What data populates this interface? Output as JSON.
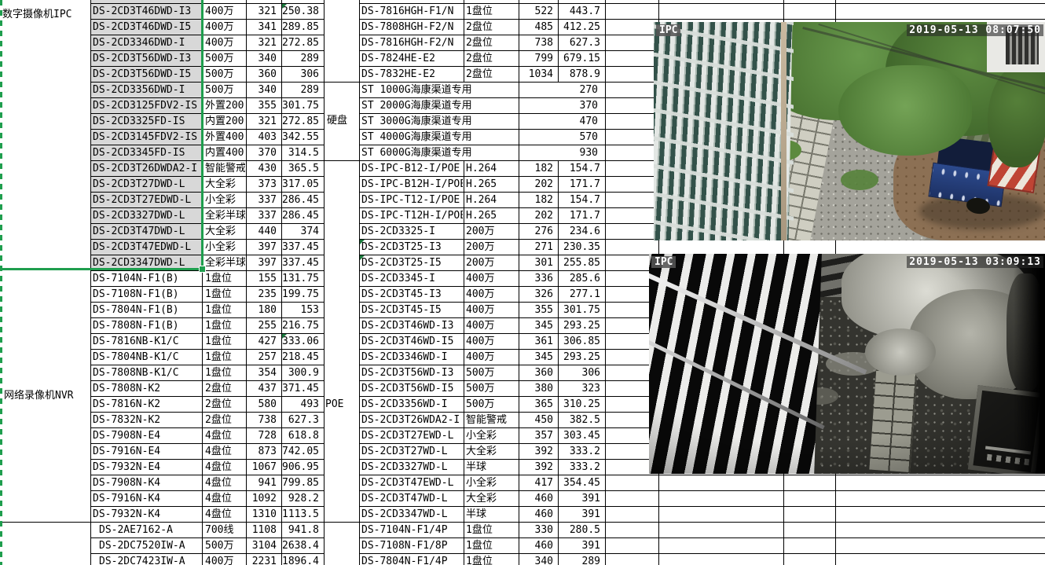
{
  "app": {
    "kind": "spreadsheet price list with embedded IP-camera snapshots"
  },
  "selection": {
    "range_rows": "1-17",
    "range_columns": "A:B",
    "border_color": "#1f9e4e",
    "fill_color": "#d8d8d8"
  },
  "grid": {
    "line_color": "#000000",
    "error_triangle_color": "#1b7a3d"
  },
  "categories": {
    "left_top": "数字摄像机IPC",
    "left_bottom": "网络录像机NVR",
    "mid_top": "硬盘",
    "mid_bottom": "POE"
  },
  "left_table": {
    "rows": [
      [
        "DS-2CD3T46DWD-I3",
        "400万",
        "321",
        "250.38"
      ],
      [
        "DS-2CD3T46DWD-I5",
        "400万",
        "341",
        "289.85"
      ],
      [
        "DS-2CD3346DWD-I",
        "400万",
        "321",
        "272.85"
      ],
      [
        "DS-2CD3T56DWD-I3",
        "500万",
        "340",
        "289"
      ],
      [
        "DS-2CD3T56DWD-I5",
        "500万",
        "360",
        "306"
      ],
      [
        "DS-2CD3356DWD-I",
        "500万",
        "340",
        "289"
      ],
      [
        "DS-2CD3125FDV2-IS",
        "外置200",
        "355",
        "301.75"
      ],
      [
        "DS-2CD3325FD-IS",
        "内置200",
        "321",
        "272.85"
      ],
      [
        "DS-2CD3145FDV2-IS",
        "外置400",
        "403",
        "342.55"
      ],
      [
        "DS-2CD3345FD-IS",
        "内置400",
        "370",
        "314.5"
      ],
      [
        "DS-2CD3T26DWDA2-I",
        "智能警戒",
        "430",
        "365.5"
      ],
      [
        "DS-2CD3T27DWD-L",
        "大全彩",
        "373",
        "317.05"
      ],
      [
        "DS-2CD3T27EDWD-L",
        "小全彩",
        "337",
        "286.45"
      ],
      [
        "DS-2CD3327DWD-L",
        "全彩半球",
        "337",
        "286.45"
      ],
      [
        "DS-2CD3T47DWD-L",
        "大全彩",
        "440",
        "374"
      ],
      [
        "DS-2CD3T47EDWD-L",
        "小全彩",
        "397",
        "337.45"
      ],
      [
        "DS-2CD3347DWD-L",
        "全彩半球",
        "397",
        "337.45"
      ],
      [
        "DS-7104N-F1(B)",
        "1盘位",
        "155",
        "131.75"
      ],
      [
        "DS-7108N-F1(B)",
        "1盘位",
        "235",
        "199.75"
      ],
      [
        "DS-7804N-F1(B)",
        "1盘位",
        "180",
        "153"
      ],
      [
        "DS-7808N-F1(B)",
        "1盘位",
        "255",
        "216.75"
      ],
      [
        "DS-7816NB-K1/C",
        "1盘位",
        "427",
        "333.06"
      ],
      [
        "DS-7804NB-K1/C",
        "1盘位",
        "257",
        "218.45"
      ],
      [
        "DS-7808NB-K1/C",
        "1盘位",
        "354",
        "300.9"
      ],
      [
        "DS-7808N-K2",
        "2盘位",
        "437",
        "371.45"
      ],
      [
        "DS-7816N-K2",
        "2盘位",
        "580",
        "493"
      ],
      [
        "DS-7832N-K2",
        "2盘位",
        "738",
        "627.3"
      ],
      [
        "DS-7908N-E4",
        "4盘位",
        "728",
        "618.8"
      ],
      [
        "DS-7916N-E4",
        "4盘位",
        "873",
        "742.05"
      ],
      [
        "DS-7932N-E4",
        "4盘位",
        "1067",
        "906.95"
      ],
      [
        "DS-7908N-K4",
        "4盘位",
        "941",
        "799.85"
      ],
      [
        "DS-7916N-K4",
        "4盘位",
        "1092",
        "928.2"
      ],
      [
        "DS-7932N-K4",
        "4盘位",
        "1310",
        "1113.5"
      ],
      [
        "DS-2AE7162-A",
        "700线",
        "1108",
        "941.8"
      ],
      [
        "DS-2DC7520IW-A",
        "500万",
        "3104",
        "2638.4"
      ],
      [
        "DS-2DC7423IW-A",
        "400万",
        "2231",
        "1896.4"
      ]
    ],
    "selected_rows_gray": [
      1,
      2,
      3,
      4,
      5,
      6,
      7,
      8,
      9,
      10,
      11,
      12,
      13,
      14,
      15,
      16,
      17
    ],
    "indented_rows": [
      34,
      35,
      36
    ],
    "error_marks": [
      {
        "row": 1,
        "col": "price_b"
      },
      {
        "row": 22,
        "col": "price_b"
      }
    ]
  },
  "right_table": {
    "rows": [
      [
        "DS-7816HGH-F1/N",
        "1盘位",
        "522",
        "443.7"
      ],
      [
        "DS-7808HGH-F2/N",
        "2盘位",
        "485",
        "412.25"
      ],
      [
        "DS-7816HGH-F2/N",
        "2盘位",
        "738",
        "627.3"
      ],
      [
        "DS-7824HE-E2",
        "2盘位",
        "799",
        "679.15"
      ],
      [
        "DS-7832HE-E2",
        "2盘位",
        "1034",
        "878.9"
      ],
      [
        "ST 1000G海康渠道专用",
        "",
        "",
        "270"
      ],
      [
        "ST 2000G海康渠道专用",
        "",
        "",
        "370"
      ],
      [
        "ST 3000G海康渠道专用",
        "",
        "",
        "470"
      ],
      [
        "ST 4000G海康渠道专用",
        "",
        "",
        "570"
      ],
      [
        "ST 6000G海康渠道专用",
        "",
        "",
        "930"
      ],
      [
        "DS-IPC-B12-I/POE",
        "H.264",
        "182",
        "154.7"
      ],
      [
        "DS-IPC-B12H-I/POE",
        "H.265",
        "202",
        "171.7"
      ],
      [
        "DS-IPC-T12-I/POE",
        "H.264",
        "182",
        "154.7"
      ],
      [
        "DS-IPC-T12H-I/POE",
        "H.265",
        "202",
        "171.7"
      ],
      [
        "DS-2CD3325-I",
        "200万",
        "276",
        "234.6"
      ],
      [
        "DS-2CD3T25-I3",
        "200万",
        "271",
        "230.35"
      ],
      [
        "DS-2CD3T25-I5",
        "200万",
        "301",
        "255.85"
      ],
      [
        "DS-2CD3345-I",
        "400万",
        "336",
        "285.6"
      ],
      [
        "DS-2CD3T45-I3",
        "400万",
        "326",
        "277.1"
      ],
      [
        "DS-2CD3T45-I5",
        "400万",
        "355",
        "301.75"
      ],
      [
        "DS-2CD3T46WD-I3",
        "400万",
        "345",
        "293.25"
      ],
      [
        "DS-2CD3T46WD-I5",
        "400万",
        "361",
        "306.85"
      ],
      [
        "DS-2CD3346WD-I",
        "400万",
        "345",
        "293.25"
      ],
      [
        "DS-2CD3T56WD-I3",
        "500万",
        "360",
        "306"
      ],
      [
        "DS-2CD3T56WD-I5",
        "500万",
        "380",
        "323"
      ],
      [
        "DS-2CD3356WD-I",
        "500万",
        "365",
        "310.25"
      ],
      [
        "DS-2CD3T26WDA2-I",
        "智能警戒",
        "450",
        "382.5"
      ],
      [
        "DS-2CD3T27EWD-L",
        "小全彩",
        "357",
        "303.45"
      ],
      [
        "DS-2CD3T27WD-L",
        "大全彩",
        "392",
        "333.2"
      ],
      [
        "DS-2CD3327WD-L",
        "半球",
        "392",
        "333.2"
      ],
      [
        "DS-2CD3T47EWD-L",
        "小全彩",
        "417",
        "354.45"
      ],
      [
        "DS-2CD3T47WD-L",
        "大全彩",
        "460",
        "391"
      ],
      [
        "DS-2CD3347WD-L",
        "半球",
        "460",
        "391"
      ],
      [
        "DS-7104N-F1/4P",
        "1盘位",
        "330",
        "280.5"
      ],
      [
        "DS-7108N-F1/8P",
        "1盘位",
        "460",
        "391"
      ],
      [
        "DS-7804N-F1/4P",
        "1盘位",
        "340",
        "289"
      ]
    ],
    "merged_rows": [
      6,
      7,
      8,
      9,
      10
    ],
    "error_marks": [
      {
        "row": 16,
        "col": "model"
      },
      {
        "row": 17,
        "col": "model"
      }
    ]
  },
  "cameras": [
    {
      "label": "IPC",
      "timestamp": "2019-05-13 08:07:50",
      "mode": "day-color"
    },
    {
      "label": "IPC",
      "timestamp": "2019-05-13 03:09:13",
      "mode": "night-ir"
    }
  ]
}
